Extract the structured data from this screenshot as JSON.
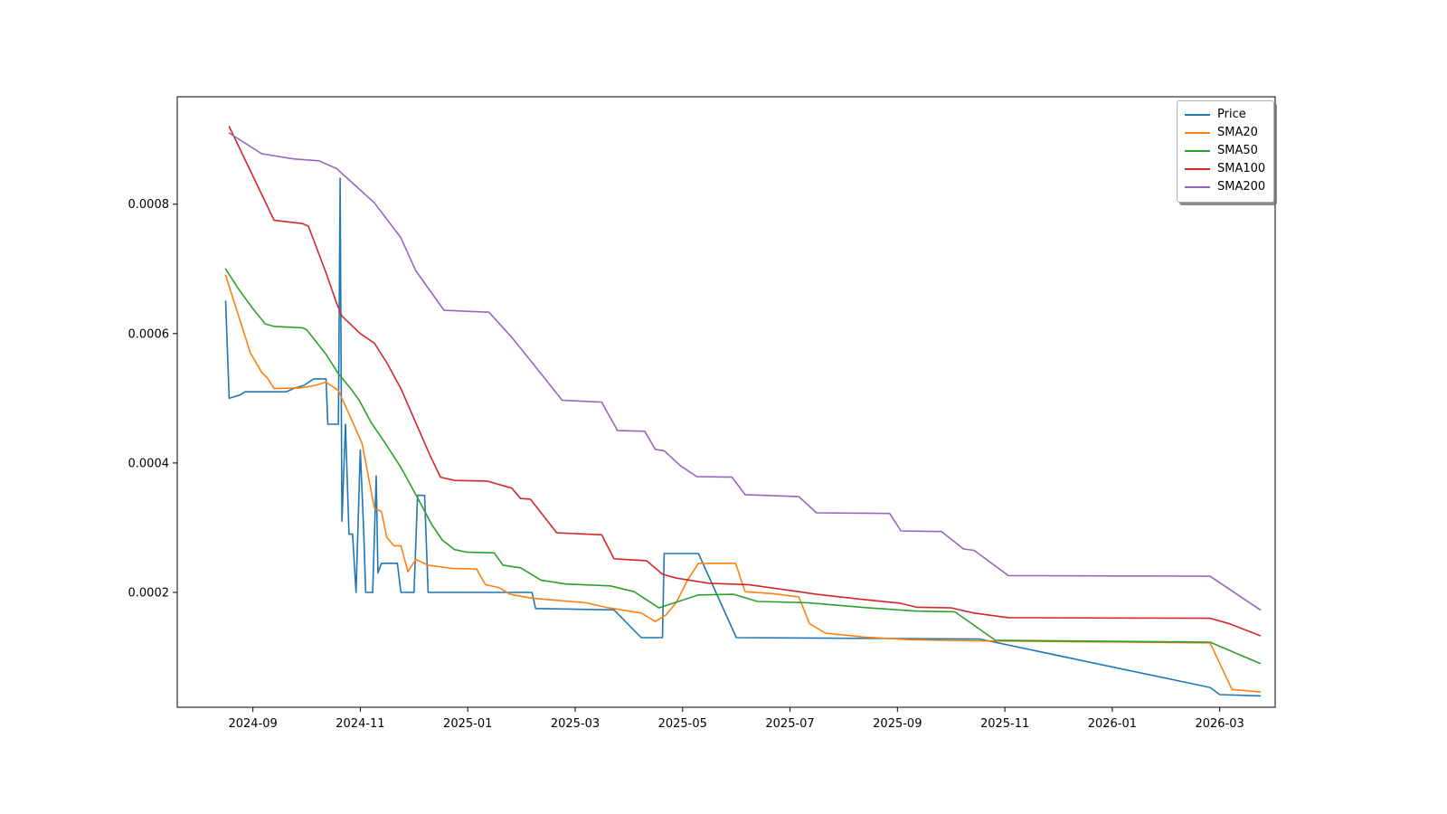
{
  "figure": {
    "background": "#ffffff",
    "axes_border_color": "#000000"
  },
  "chart_data": {
    "type": "line",
    "title": "",
    "xlabel": "",
    "ylabel": "",
    "grid": false,
    "x_tick_labels": [
      "2024-09",
      "2024-11",
      "2025-01",
      "2025-03",
      "2025-05",
      "2025-07",
      "2025-09",
      "2025-11",
      "2026-01",
      "2026-03"
    ],
    "y_tick_labels": [
      "0.0002",
      "0.0004",
      "0.0006",
      "0.0008"
    ],
    "xlim": [
      "2024-07-19",
      "2026-04-02"
    ],
    "ylim": [
      2.24e-05,
      0.000966
    ],
    "legend": {
      "position": "upper right",
      "entries": [
        {
          "label": "Price",
          "color": "#1f77b4"
        },
        {
          "label": "SMA20",
          "color": "#ff7f0e"
        },
        {
          "label": "SMA50",
          "color": "#2ca02c"
        },
        {
          "label": "SMA100",
          "color": "#d62728"
        },
        {
          "label": "SMA200",
          "color": "#9467bd"
        }
      ]
    },
    "series": [
      {
        "name": "Price",
        "color": "#1f77b4",
        "points": [
          [
            "2024-08-16",
            0.00065
          ],
          [
            "2024-08-18",
            0.0005
          ],
          [
            "2024-08-24",
            0.000505
          ],
          [
            "2024-08-27",
            0.00051
          ],
          [
            "2024-09-20",
            0.00051
          ],
          [
            "2024-09-24",
            0.000515
          ],
          [
            "2024-09-30",
            0.00052
          ],
          [
            "2024-10-05",
            0.00053
          ],
          [
            "2024-10-12",
            0.00053
          ],
          [
            "2024-10-13",
            0.00046
          ],
          [
            "2024-10-19",
            0.00046
          ],
          [
            "2024-10-20",
            0.00084
          ],
          [
            "2024-10-21",
            0.00031
          ],
          [
            "2024-10-23",
            0.00046
          ],
          [
            "2024-10-25",
            0.00029
          ],
          [
            "2024-10-27",
            0.00029
          ],
          [
            "2024-10-29",
            0.0002
          ],
          [
            "2024-11-01",
            0.00042
          ],
          [
            "2024-11-03",
            0.00029
          ],
          [
            "2024-11-04",
            0.0002
          ],
          [
            "2024-11-08",
            0.0002
          ],
          [
            "2024-11-10",
            0.00038
          ],
          [
            "2024-11-11",
            0.00023
          ],
          [
            "2024-11-13",
            0.000245
          ],
          [
            "2024-11-22",
            0.000245
          ],
          [
            "2024-11-24",
            0.0002
          ],
          [
            "2024-12-01",
            0.0002
          ],
          [
            "2024-12-03",
            0.00035
          ],
          [
            "2024-12-07",
            0.00035
          ],
          [
            "2024-12-09",
            0.0002
          ],
          [
            "2025-02-07",
            0.0002
          ],
          [
            "2025-02-09",
            0.000175
          ],
          [
            "2025-03-23",
            0.000173
          ],
          [
            "2025-04-08",
            0.00013
          ],
          [
            "2025-04-20",
            0.00013
          ],
          [
            "2025-04-21",
            0.00026
          ],
          [
            "2025-05-10",
            0.00026
          ],
          [
            "2025-06-01",
            0.00013
          ],
          [
            "2025-10-17",
            0.000128
          ],
          [
            "2026-02-26",
            5.3e-05
          ],
          [
            "2026-03-01",
            4.2e-05
          ],
          [
            "2026-03-24",
            4e-05
          ]
        ]
      },
      {
        "name": "SMA20",
        "color": "#ff7f0e",
        "points": [
          [
            "2024-08-16",
            0.00069
          ],
          [
            "2024-08-23",
            0.00063
          ],
          [
            "2024-08-30",
            0.00057
          ],
          [
            "2024-09-06",
            0.00054
          ],
          [
            "2024-09-09",
            0.000532
          ],
          [
            "2024-09-13",
            0.000515
          ],
          [
            "2024-09-28",
            0.000516
          ],
          [
            "2024-10-06",
            0.00052
          ],
          [
            "2024-10-12",
            0.000525
          ],
          [
            "2024-10-19",
            0.000512
          ],
          [
            "2024-10-26",
            0.00047
          ],
          [
            "2024-11-02",
            0.00043
          ],
          [
            "2024-11-09",
            0.00033
          ],
          [
            "2024-11-13",
            0.000325
          ],
          [
            "2024-11-16",
            0.000285
          ],
          [
            "2024-11-20",
            0.000272
          ],
          [
            "2024-11-24",
            0.000272
          ],
          [
            "2024-11-28",
            0.000232
          ],
          [
            "2024-12-02",
            0.000251
          ],
          [
            "2024-12-09",
            0.000242
          ],
          [
            "2024-12-23",
            0.000237
          ],
          [
            "2025-01-06",
            0.000236
          ],
          [
            "2025-01-11",
            0.000212
          ],
          [
            "2025-01-19",
            0.000207
          ],
          [
            "2025-01-25",
            0.000197
          ],
          [
            "2025-02-07",
            0.000191
          ],
          [
            "2025-03-07",
            0.000184
          ],
          [
            "2025-03-18",
            0.000177
          ],
          [
            "2025-04-08",
            0.000168
          ],
          [
            "2025-04-16",
            0.000155
          ],
          [
            "2025-04-22",
            0.000165
          ],
          [
            "2025-04-28",
            0.000185
          ],
          [
            "2025-05-04",
            0.00022
          ],
          [
            "2025-05-10",
            0.000245
          ],
          [
            "2025-05-31",
            0.000245
          ],
          [
            "2025-06-06",
            0.000201
          ],
          [
            "2025-06-22",
            0.000198
          ],
          [
            "2025-07-06",
            0.000193
          ],
          [
            "2025-07-12",
            0.000152
          ],
          [
            "2025-07-21",
            0.000137
          ],
          [
            "2025-08-12",
            0.000131
          ],
          [
            "2025-09-07",
            0.000127
          ],
          [
            "2025-10-17",
            0.000125
          ],
          [
            "2026-02-26",
            0.000122
          ],
          [
            "2026-03-08",
            5e-05
          ],
          [
            "2026-03-24",
            4.6e-05
          ]
        ]
      },
      {
        "name": "SMA50",
        "color": "#2ca02c",
        "points": [
          [
            "2024-08-16",
            0.0007
          ],
          [
            "2024-08-23",
            0.00067
          ],
          [
            "2024-08-31",
            0.00064
          ],
          [
            "2024-09-08",
            0.000615
          ],
          [
            "2024-09-13",
            0.000611
          ],
          [
            "2024-09-29",
            0.000609
          ],
          [
            "2024-10-01",
            0.000606
          ],
          [
            "2024-10-12",
            0.000568
          ],
          [
            "2024-10-19",
            0.000538
          ],
          [
            "2024-10-26",
            0.000515
          ],
          [
            "2024-10-31",
            0.000496
          ],
          [
            "2024-11-07",
            0.000463
          ],
          [
            "2024-11-15",
            0.000431
          ],
          [
            "2024-11-24",
            0.000393
          ],
          [
            "2024-12-02",
            0.000351
          ],
          [
            "2024-12-11",
            0.000305
          ],
          [
            "2024-12-17",
            0.000281
          ],
          [
            "2024-12-24",
            0.000266
          ],
          [
            "2025-01-01",
            0.000262
          ],
          [
            "2025-01-16",
            0.000261
          ],
          [
            "2025-01-21",
            0.000242
          ],
          [
            "2025-01-31",
            0.000238
          ],
          [
            "2025-02-12",
            0.000219
          ],
          [
            "2025-02-26",
            0.000213
          ],
          [
            "2025-03-21",
            0.00021
          ],
          [
            "2025-04-04",
            0.000201
          ],
          [
            "2025-04-18",
            0.000176
          ],
          [
            "2025-05-10",
            0.000196
          ],
          [
            "2025-05-30",
            0.000197
          ],
          [
            "2025-06-13",
            0.000186
          ],
          [
            "2025-07-11",
            0.000184
          ],
          [
            "2025-08-15",
            0.000176
          ],
          [
            "2025-09-12",
            0.000171
          ],
          [
            "2025-10-03",
            0.00017
          ],
          [
            "2025-10-12",
            0.000153
          ],
          [
            "2025-10-26",
            0.000126
          ],
          [
            "2026-02-26",
            0.000123
          ],
          [
            "2026-03-24",
            9e-05
          ]
        ]
      },
      {
        "name": "SMA100",
        "color": "#d62728",
        "points": [
          [
            "2024-08-18",
            0.00092
          ],
          [
            "2024-09-13",
            0.000775
          ],
          [
            "2024-09-29",
            0.00077
          ],
          [
            "2024-10-02",
            0.000766
          ],
          [
            "2024-10-12",
            0.000694
          ],
          [
            "2024-10-18",
            0.000647
          ],
          [
            "2024-10-21",
            0.000627
          ],
          [
            "2024-11-01",
            0.0006
          ],
          [
            "2024-11-09",
            0.000585
          ],
          [
            "2024-11-16",
            0.000555
          ],
          [
            "2024-11-24",
            0.000515
          ],
          [
            "2024-12-02",
            0.000462
          ],
          [
            "2024-12-10",
            0.000412
          ],
          [
            "2024-12-16",
            0.000378
          ],
          [
            "2024-12-24",
            0.000373
          ],
          [
            "2025-01-12",
            0.000372
          ],
          [
            "2025-01-26",
            0.000361
          ],
          [
            "2025-01-31",
            0.000345
          ],
          [
            "2025-02-06",
            0.000344
          ],
          [
            "2025-02-13",
            0.00032
          ],
          [
            "2025-02-21",
            0.000292
          ],
          [
            "2025-03-16",
            0.000289
          ],
          [
            "2025-03-23",
            0.000252
          ],
          [
            "2025-04-11",
            0.000249
          ],
          [
            "2025-04-20",
            0.000228
          ],
          [
            "2025-04-28",
            0.000222
          ],
          [
            "2025-05-16",
            0.000214
          ],
          [
            "2025-06-08",
            0.000212
          ],
          [
            "2025-07-06",
            0.000201
          ],
          [
            "2025-07-16",
            0.000197
          ],
          [
            "2025-08-12",
            0.000189
          ],
          [
            "2025-09-03",
            0.000183
          ],
          [
            "2025-09-12",
            0.000177
          ],
          [
            "2025-10-01",
            0.000176
          ],
          [
            "2025-10-14",
            0.000168
          ],
          [
            "2025-11-03",
            0.000161
          ],
          [
            "2026-02-26",
            0.00016
          ],
          [
            "2026-03-06",
            0.000152
          ],
          [
            "2026-03-24",
            0.000133
          ]
        ]
      },
      {
        "name": "SMA200",
        "color": "#9467bd",
        "points": [
          [
            "2024-08-18",
            0.00091
          ],
          [
            "2024-09-06",
            0.000878
          ],
          [
            "2024-09-24",
            0.00087
          ],
          [
            "2024-10-08",
            0.000867
          ],
          [
            "2024-10-18",
            0.000855
          ],
          [
            "2024-11-09",
            0.000802
          ],
          [
            "2024-11-24",
            0.000748
          ],
          [
            "2024-12-02",
            0.000697
          ],
          [
            "2024-12-18",
            0.000636
          ],
          [
            "2025-01-13",
            0.000633
          ],
          [
            "2025-01-26",
            0.000594
          ],
          [
            "2025-02-08",
            0.000552
          ],
          [
            "2025-02-24",
            0.000497
          ],
          [
            "2025-03-16",
            0.000494
          ],
          [
            "2025-03-25",
            0.00045
          ],
          [
            "2025-04-10",
            0.000449
          ],
          [
            "2025-04-16",
            0.000421
          ],
          [
            "2025-04-21",
            0.000419
          ],
          [
            "2025-04-30",
            0.000396
          ],
          [
            "2025-05-09",
            0.000379
          ],
          [
            "2025-05-29",
            0.000378
          ],
          [
            "2025-06-06",
            0.000351
          ],
          [
            "2025-07-06",
            0.000348
          ],
          [
            "2025-07-16",
            0.000323
          ],
          [
            "2025-08-27",
            0.000322
          ],
          [
            "2025-09-03",
            0.000295
          ],
          [
            "2025-09-26",
            0.000294
          ],
          [
            "2025-10-08",
            0.000267
          ],
          [
            "2025-10-14",
            0.000265
          ],
          [
            "2025-11-03",
            0.000226
          ],
          [
            "2026-02-26",
            0.000225
          ],
          [
            "2026-03-24",
            0.000173
          ]
        ]
      }
    ]
  }
}
